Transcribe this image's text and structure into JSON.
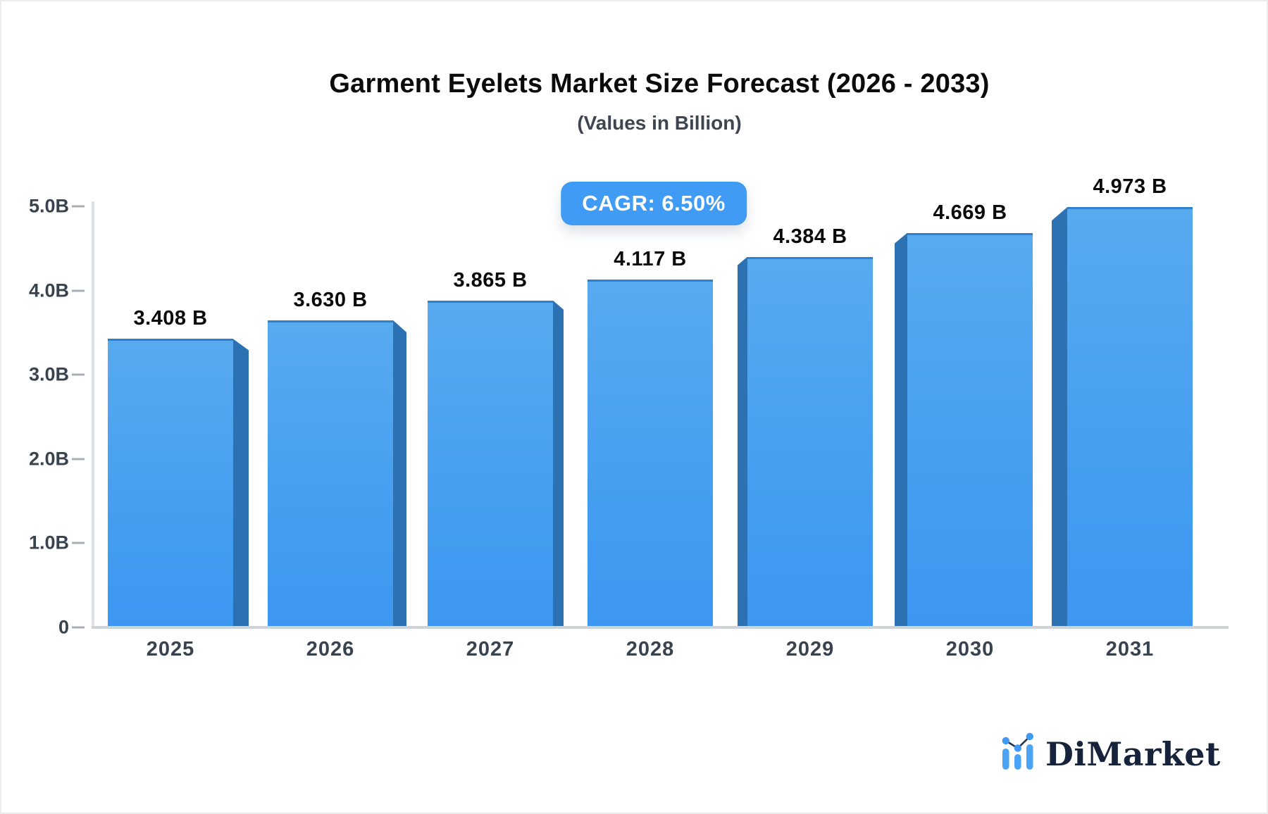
{
  "header": {
    "title": "Garment Eyelets Market Size Forecast (2026 - 2033)",
    "subtitle": "(Values in Billion)"
  },
  "badge": {
    "label": "CAGR: 6.50%"
  },
  "chart_data": {
    "type": "bar",
    "title": "Garment Eyelets Market Size Forecast (2026 - 2033)",
    "subtitle": "(Values in Billion)",
    "categories": [
      "2025",
      "2026",
      "2027",
      "2028",
      "2029",
      "2030",
      "2031"
    ],
    "values": [
      3.408,
      3.63,
      3.865,
      4.117,
      4.384,
      4.669,
      4.973
    ],
    "value_labels": [
      "3.408 B",
      "3.630 B",
      "3.865 B",
      "4.117 B",
      "4.384 B",
      "4.669 B",
      "4.973 B"
    ],
    "xlabel": "",
    "ylabel": "",
    "ylim": [
      0,
      5
    ],
    "grid": false,
    "legend": false,
    "yticks": [
      {
        "v": 0,
        "label": "0"
      },
      {
        "v": 1,
        "label": "1.0B"
      },
      {
        "v": 2,
        "label": "2.0B"
      },
      {
        "v": 3,
        "label": "3.0B"
      },
      {
        "v": 4,
        "label": "4.0B"
      },
      {
        "v": 5,
        "label": "5.0B"
      }
    ],
    "colors": {
      "bar_light_top": "#58aaef",
      "bar_light_bottom": "#3d97f1",
      "bar_dark_side": "#2c72b3",
      "axis_line": "#dde0e4",
      "baseline": "#cfd2d6",
      "tick_text": "#39434f",
      "value_text": "#0a0a0a",
      "badge_bg": "#3f9bf3",
      "badge_text": "#ffffff"
    }
  },
  "logo": {
    "text": "DiMarket",
    "icon": "bar-chart-logo-icon",
    "icon_color": "#4ba3f5"
  }
}
